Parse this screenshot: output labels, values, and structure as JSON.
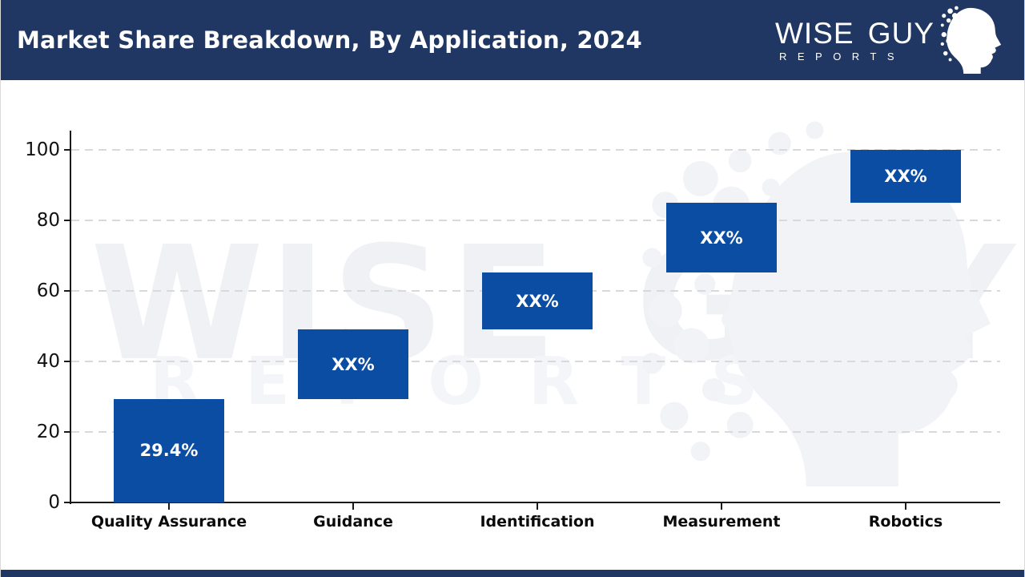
{
  "header": {
    "title": "Market Share Breakdown, By Application, 2024",
    "logo": {
      "line1": "WISE GUY",
      "line2": "REPORTS"
    }
  },
  "watermark": {
    "line1": "WISE GUY",
    "line2": "REPORTS"
  },
  "colors": {
    "header_bg": "#213763",
    "footer_bg": "#213763",
    "bar_fill": "#0B4DA2",
    "bar_label": "#FFFFFF",
    "axis": "#1A1A1A",
    "grid": "#D9D9DC",
    "watermark_text": "#EFF1F4",
    "watermark_text2": "#F3F5F8",
    "watermark_shape": "#F2F3F6"
  },
  "chart_data": {
    "type": "bar",
    "variant": "waterfall",
    "title": "Market Share Breakdown, By Application, 2024",
    "categories": [
      "Quality Assurance",
      "Guidance",
      "Identification",
      "Measurement",
      "Robotics"
    ],
    "segments": [
      {
        "category": "Quality Assurance",
        "start": 0,
        "end": 29.4,
        "label": "29.4%"
      },
      {
        "category": "Guidance",
        "start": 29.4,
        "end": 49.0,
        "label": "XX%"
      },
      {
        "category": "Identification",
        "start": 49.0,
        "end": 65.2,
        "label": "XX%"
      },
      {
        "category": "Measurement",
        "start": 65.2,
        "end": 85.0,
        "label": "XX%"
      },
      {
        "category": "Robotics",
        "start": 85.0,
        "end": 100.0,
        "label": "XX%"
      }
    ],
    "yticks": [
      0,
      20,
      40,
      60,
      80,
      100
    ],
    "ylim": [
      0,
      105
    ],
    "xlabel": "",
    "ylabel": "",
    "grid": "horizontal-dashed",
    "legend": "none",
    "bar_color": "#0B4DA2"
  }
}
